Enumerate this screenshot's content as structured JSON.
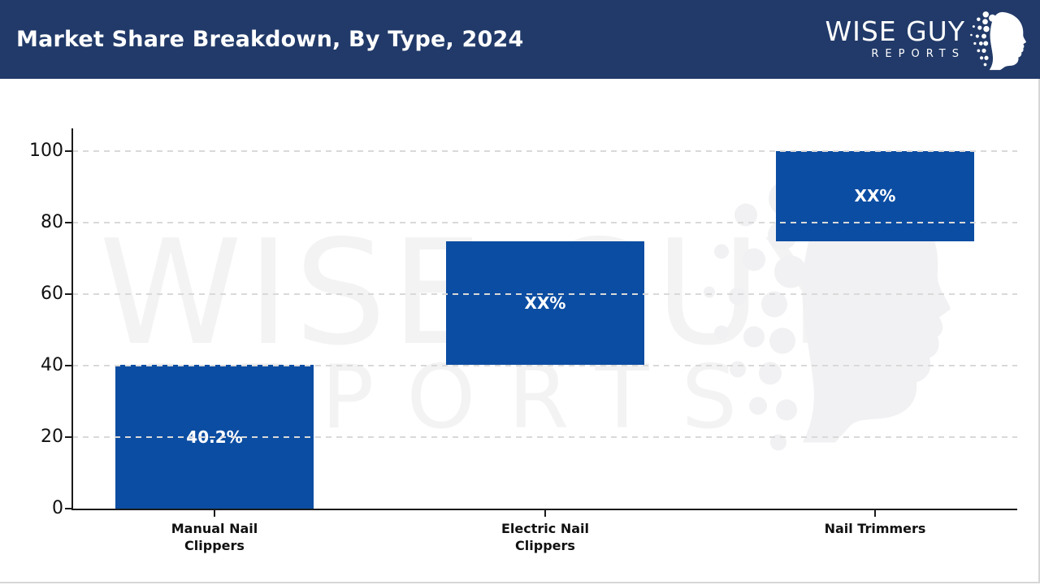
{
  "header": {
    "title": "Market Share Breakdown, By Type, 2024",
    "bg_color": "#213a69",
    "logo": {
      "line1": "WISE GUY",
      "line2": "REPORTS"
    }
  },
  "watermark": {
    "line1": "WISE GUY",
    "line2": "REPORTS"
  },
  "chart_data": {
    "type": "bar",
    "subtype": "waterfall-stacked-steps",
    "title": "Market Share Breakdown, By Type, 2024",
    "xlabel": "",
    "ylabel": "",
    "ylim": [
      0,
      100
    ],
    "yticks": [
      0,
      20,
      40,
      60,
      80,
      100
    ],
    "grid": "horizontal dashed, drawn above bars",
    "legend": "none",
    "bar_color": "#0b4da2",
    "label_color": "#ffffff",
    "categories": [
      "Manual Nail Clippers",
      "Electric Nail Clippers",
      "Nail Trimmers"
    ],
    "bars": [
      {
        "category": "Manual Nail\nClippers",
        "start": 0,
        "end": 40.2,
        "label": "40.2%"
      },
      {
        "category": "Electric Nail\nClippers",
        "start": 40.2,
        "end": 74.8,
        "label": "XX%"
      },
      {
        "category": "Nail Trimmers",
        "start": 74.8,
        "end": 100,
        "label": "XX%"
      }
    ]
  }
}
